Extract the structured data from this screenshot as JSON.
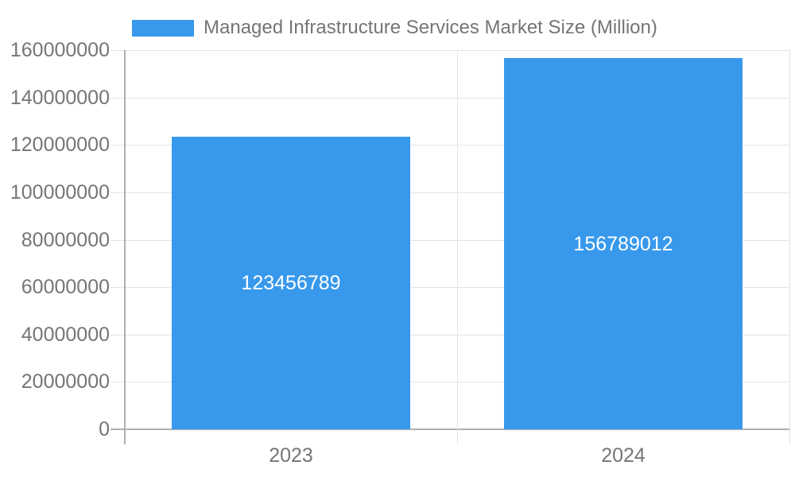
{
  "chart_data": {
    "type": "bar",
    "title": "",
    "legend": "Managed Infrastructure Services Market Size (Million)",
    "legend_position": "top-left",
    "categories": [
      "2023",
      "2024"
    ],
    "series": [
      {
        "name": "Managed Infrastructure Services Market Size (Million)",
        "values": [
          123456789,
          156789012
        ]
      }
    ],
    "value_labels": [
      "123456789",
      "156789012"
    ],
    "xlabel": "",
    "ylabel": "",
    "ylim": [
      0,
      160000000
    ],
    "ytick_step": 20000000,
    "ytick_labels": [
      "0",
      "20000000",
      "40000000",
      "60000000",
      "80000000",
      "100000000",
      "120000000",
      "140000000",
      "160000000"
    ],
    "grid": true,
    "colors": {
      "bar": "#3899ec",
      "axis_text": "#757575",
      "value_label_text": "#ffffff",
      "gridline": "#e4e4e4",
      "tick": "#e0e0e0",
      "axis_line": "#b0b0b0",
      "background": "#ffffff"
    }
  }
}
